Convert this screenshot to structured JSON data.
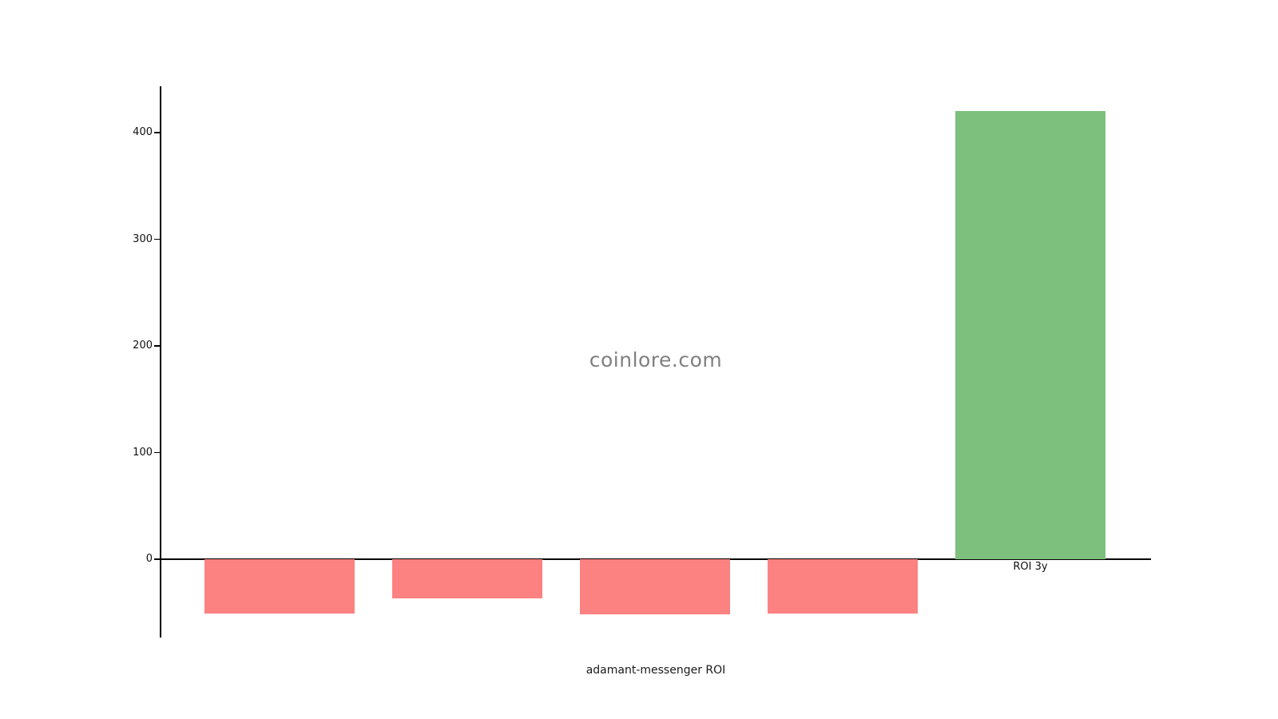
{
  "watermark": {
    "text": "coinlore.com"
  },
  "chart_data": {
    "type": "bar",
    "title": "adamant-messenger ROI",
    "title_position": "bottom",
    "categories": [
      "",
      "",
      "",
      "",
      "ROI 3y"
    ],
    "values": [
      -51,
      -37,
      -52,
      -51,
      420
    ],
    "bar_colors": [
      "#fc8181",
      "#fc8181",
      "#fc8181",
      "#fc8181",
      "#7dbf7d"
    ],
    "yticks": [
      0,
      100,
      200,
      300,
      400
    ],
    "ylim": [
      -73.4,
      443.4
    ],
    "xlabel": "",
    "ylabel": "",
    "grid": false,
    "legend": null,
    "colors": {
      "bar_negative": "#fc8181",
      "bar_positive": "#7dbf7d",
      "axis": "#000000",
      "tick_text": "#111111",
      "watermark": "#808080",
      "title_text": "#1a1a1a",
      "background": "#ffffff"
    }
  }
}
